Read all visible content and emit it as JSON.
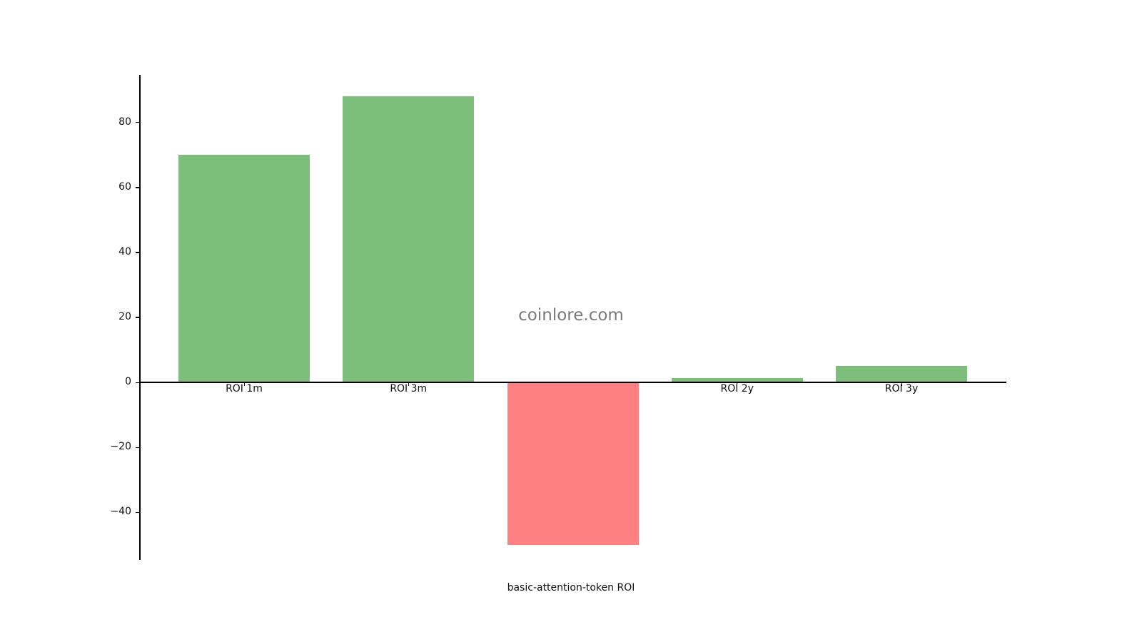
{
  "watermark": {
    "text": "coinlore.com",
    "color": "#7a7a7a"
  },
  "chart_data": {
    "type": "bar",
    "title": "basic-attention-token ROI",
    "categories": [
      "ROI 1m",
      "ROI 3m",
      "",
      "ROI 2y",
      "ROI 3y"
    ],
    "values": [
      70,
      88,
      -50,
      1.4,
      5
    ],
    "bar_colors": [
      "#7dbe7d",
      "#7dbe7d",
      "#ff8080",
      "#7dbe7d",
      "#7dbe7d"
    ],
    "positive_color": "#7dbe7d",
    "negative_color": "#ff8080",
    "axis_color": "#000000",
    "text_color": "#111111",
    "xlabel": "basic-attention-token ROI",
    "ylabel": "",
    "ylim": [
      -55,
      95
    ],
    "grid": false,
    "legend_position": "none",
    "y_ticks": [
      {
        "value": 80,
        "label": "80"
      },
      {
        "value": 60,
        "label": "60"
      },
      {
        "value": 40,
        "label": "40"
      },
      {
        "value": 20,
        "label": "20"
      },
      {
        "value": 0,
        "label": "0"
      },
      {
        "value": -20,
        "label": "−20"
      },
      {
        "value": -40,
        "label": "−40"
      }
    ]
  }
}
